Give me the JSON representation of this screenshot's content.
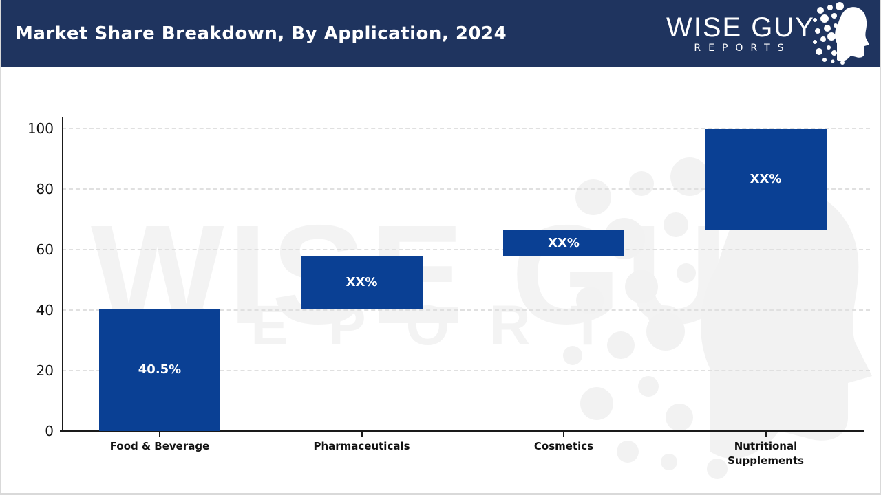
{
  "header": {
    "title": "Market Share Breakdown, By Application, 2024",
    "logo": {
      "line1": "WISE GUY",
      "line2": "REPORTS"
    }
  },
  "watermark": {
    "line1": "WISE GUY",
    "line2": "REPORTS"
  },
  "colors": {
    "header_bg": "#1f345f",
    "bar": "#0a4094",
    "bar_label": "#ffffff",
    "grid": "#e0e0e0",
    "axis": "#1a1a1a",
    "watermark": "#f3f3f3"
  },
  "chart_data": {
    "type": "bar",
    "subtype": "waterfall",
    "title": "Market Share Breakdown, By Application, 2024",
    "categories": [
      "Food & Beverage",
      "Pharmaceuticals",
      "Cosmetics",
      "Nutritional Supplements"
    ],
    "segments": [
      {
        "category": "Food & Beverage",
        "start": 0,
        "end": 40.5,
        "label": "40.5%"
      },
      {
        "category": "Pharmaceuticals",
        "start": 40.5,
        "end": 58,
        "label": "XX%"
      },
      {
        "category": "Cosmetics",
        "start": 58,
        "end": 66.5,
        "label": "XX%"
      },
      {
        "category": "Nutritional Supplements",
        "start": 66.5,
        "end": 100,
        "label": "XX%"
      }
    ],
    "ylim": [
      0,
      100
    ],
    "yticks": [
      0,
      20,
      40,
      60,
      80,
      100
    ],
    "grid": "horizontal-dashed",
    "legend": "none",
    "xlabel": "",
    "ylabel": ""
  }
}
